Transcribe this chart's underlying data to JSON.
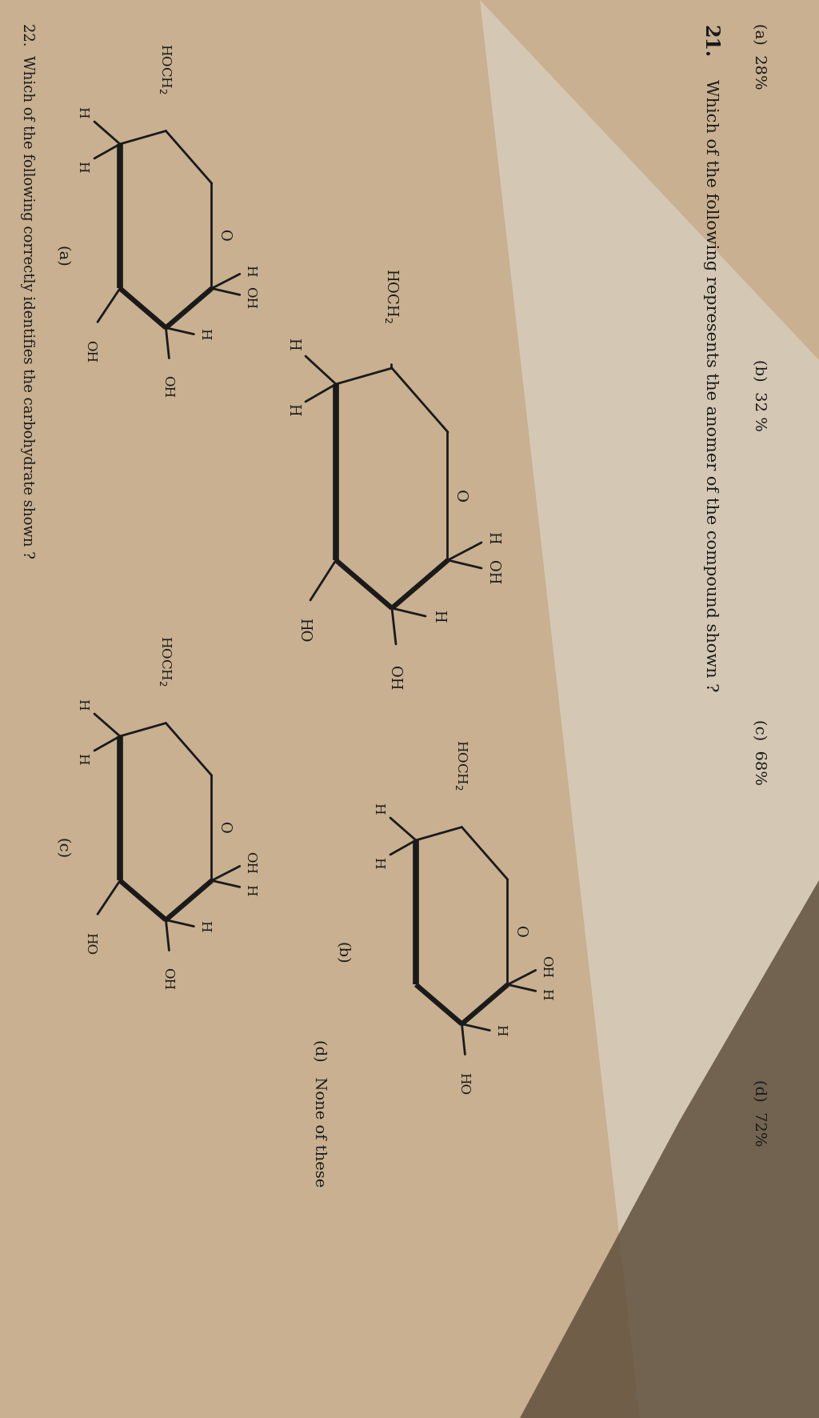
{
  "bg_color": "#c8b090",
  "paper_color": "#e8ddd0",
  "shadow_color": "#7a6a55",
  "text_color": "#1a1a1a",
  "line_color": "#1a1a1a",
  "lw_thick": 4.5,
  "lw_thin": 2.0,
  "lw_ring_front": 5.0,
  "lw_ring_back": 2.0,
  "fs_label": 13,
  "fs_text": 14,
  "fs_question": 15,
  "fs_number": 17
}
